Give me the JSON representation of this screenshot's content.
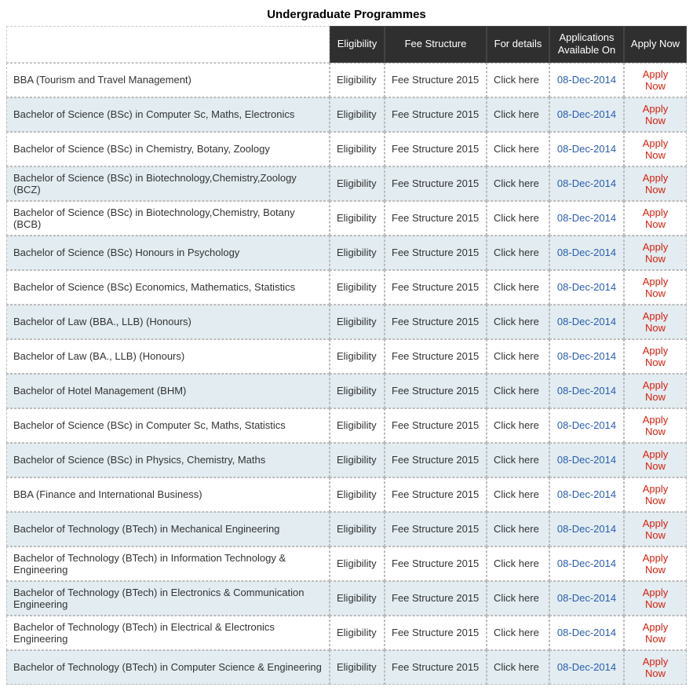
{
  "title": "Undergraduate Programmes",
  "headers": {
    "programme": "",
    "eligibility": "Eligibility",
    "fee": "Fee Structure",
    "details": "For details",
    "applications": "Applications Available On",
    "apply": "Apply Now"
  },
  "cells": {
    "eligibility_label": "Eligibility",
    "fee_label": "Fee Structure 2015",
    "details_label": "Click here",
    "apply_label": "Apply Now"
  },
  "colors": {
    "header_bg": "#2f2f2f",
    "header_text": "#ffffff",
    "row_alt_bg": "#e2ecf1",
    "link_blue": "#2a5db0",
    "link_red": "#d9200f",
    "border_dash": "#bbbbbb"
  },
  "rows": [
    {
      "name": "BBA (Tourism and Travel Management)",
      "date": "08-Dec-2014"
    },
    {
      "name": "Bachelor of Science (BSc) in Computer Sc, Maths, Electronics",
      "date": "08-Dec-2014"
    },
    {
      "name": "Bachelor of Science (BSc) in Chemistry, Botany, Zoology",
      "date": "08-Dec-2014"
    },
    {
      "name": "Bachelor of Science (BSc) in Biotechnology,Chemistry,Zoology (BCZ)",
      "date": "08-Dec-2014"
    },
    {
      "name": "Bachelor of Science (BSc) in Biotechnology,Chemistry, Botany (BCB)",
      "date": "08-Dec-2014"
    },
    {
      "name": "Bachelor of Science (BSc) Honours in Psychology",
      "date": "08-Dec-2014"
    },
    {
      "name": "Bachelor of Science (BSc) Economics, Mathematics, Statistics",
      "date": "08-Dec-2014"
    },
    {
      "name": "Bachelor of Law (BBA., LLB) (Honours)",
      "date": "08-Dec-2014"
    },
    {
      "name": "Bachelor of Law (BA., LLB) (Honours)",
      "date": "08-Dec-2014"
    },
    {
      "name": "Bachelor of Hotel Management (BHM)",
      "date": "08-Dec-2014"
    },
    {
      "name": "Bachelor of Science (BSc) in Computer Sc, Maths, Statistics",
      "date": "08-Dec-2014"
    },
    {
      "name": "Bachelor of Science (BSc) in Physics, Chemistry, Maths",
      "date": "08-Dec-2014"
    },
    {
      "name": "BBA (Finance and International Business)",
      "date": "08-Dec-2014"
    },
    {
      "name": "Bachelor of Technology (BTech) in Mechanical Engineering",
      "date": "08-Dec-2014"
    },
    {
      "name": "Bachelor of Technology (BTech) in Information Technology & Engineering",
      "date": "08-Dec-2014"
    },
    {
      "name": "Bachelor of Technology (BTech) in Electronics & Communication Engineering",
      "date": "08-Dec-2014"
    },
    {
      "name": "Bachelor of Technology (BTech) in Electrical & Electronics Engineering",
      "date": "08-Dec-2014"
    },
    {
      "name": "Bachelor of Technology (BTech) in Computer Science & Engineering",
      "date": "08-Dec-2014"
    }
  ]
}
